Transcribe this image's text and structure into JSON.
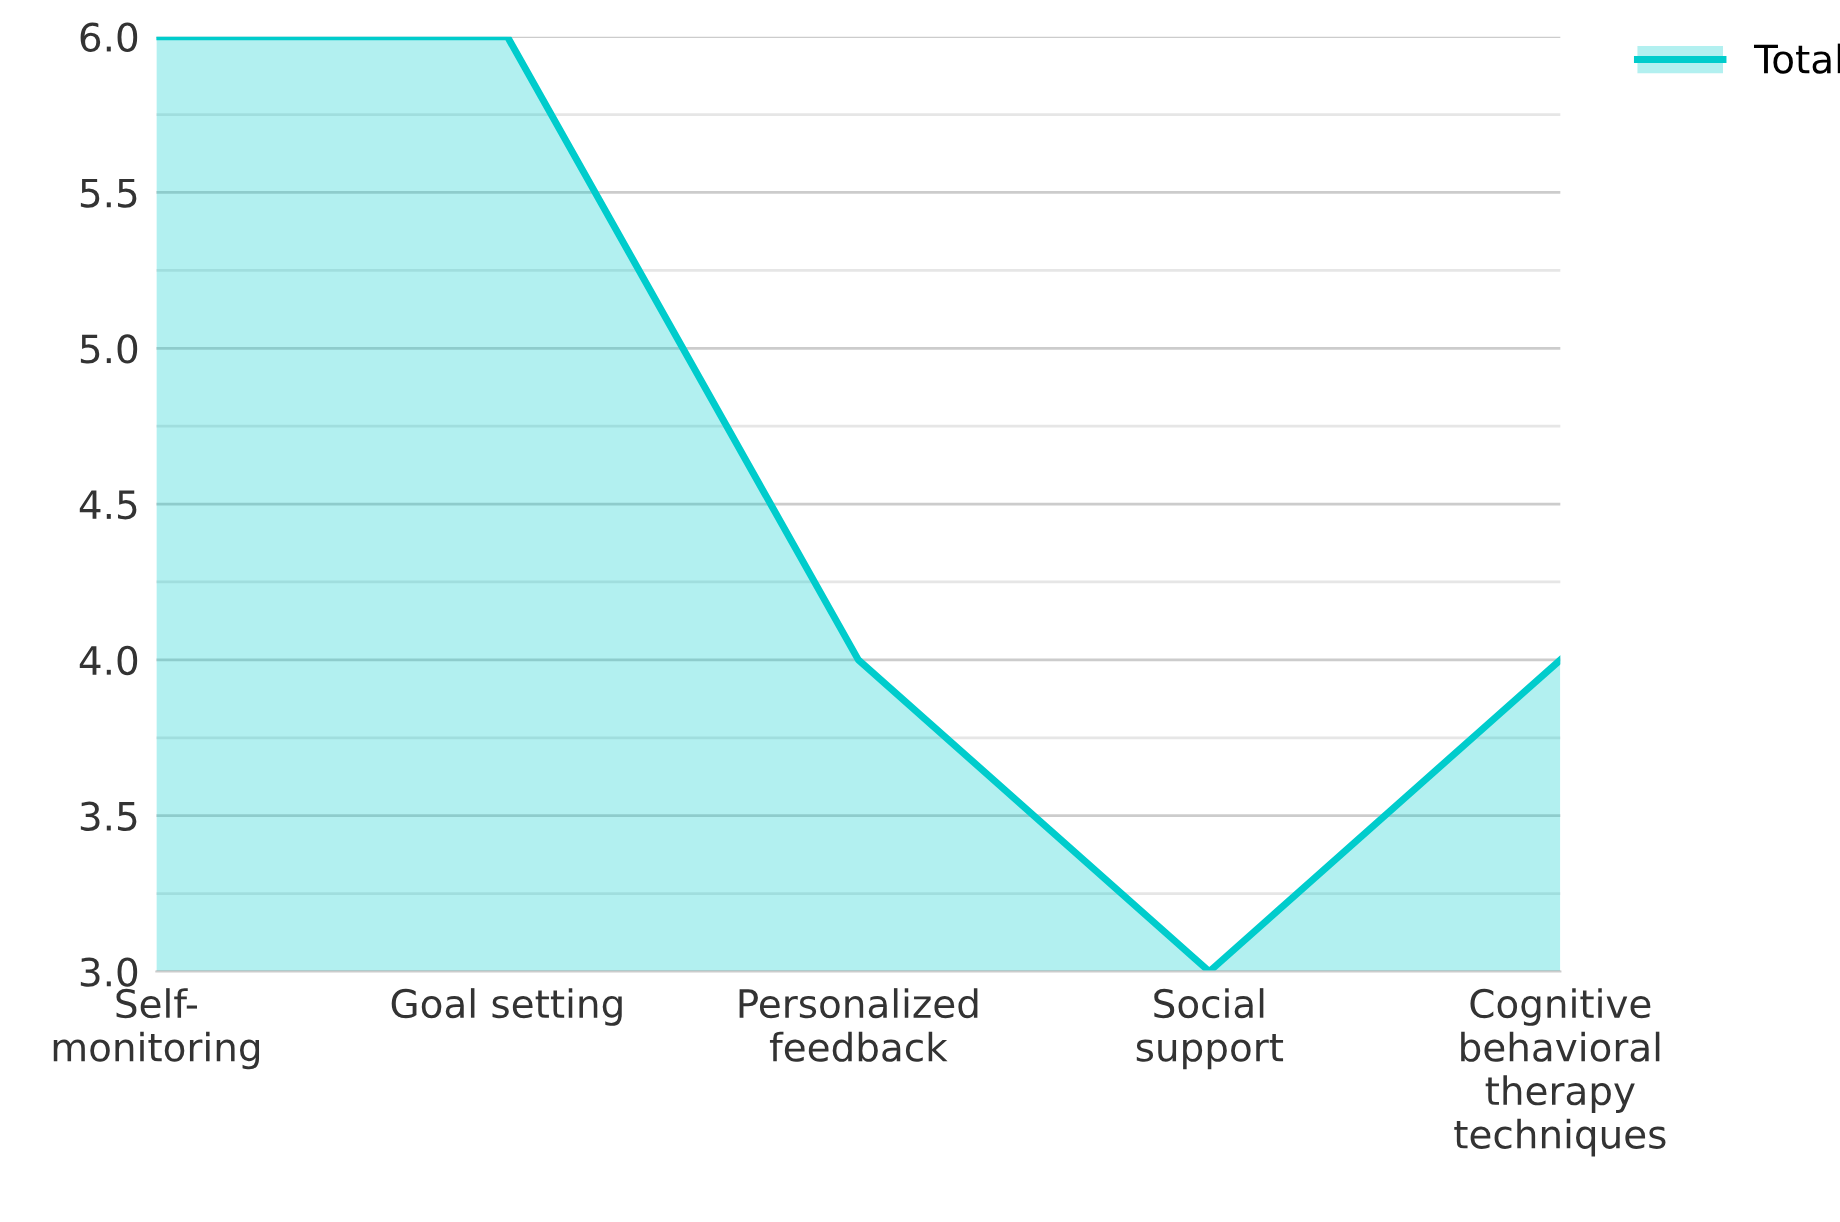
{
  "chart_data": {
    "type": "area",
    "categories": [
      "Self-monitoring",
      "Goal setting",
      "Personalized feedback",
      "Social support",
      "Cognitive behavioral therapy techniques"
    ],
    "series": [
      {
        "name": "Total",
        "color": "#00cccc",
        "values": [
          6,
          6,
          4,
          3,
          4
        ]
      }
    ],
    "ylim": [
      3,
      6
    ],
    "yticks": [
      {
        "value": 3,
        "label": "3.0"
      },
      {
        "value": 3.25,
        "label": null
      },
      {
        "value": 3.5,
        "label": "3.5"
      },
      {
        "value": 3.75,
        "label": null
      },
      {
        "value": 4,
        "label": "4.0"
      },
      {
        "value": 4.25,
        "label": null
      },
      {
        "value": 4.5,
        "label": "4.5"
      },
      {
        "value": 4.75,
        "label": null
      },
      {
        "value": 5,
        "label": "5.0"
      },
      {
        "value": 5.25,
        "label": null
      },
      {
        "value": 5.5,
        "label": "5.5"
      },
      {
        "value": 5.75,
        "label": null
      },
      {
        "value": 6,
        "label": "6.0"
      }
    ],
    "grid": "y",
    "legend": "top right"
  }
}
